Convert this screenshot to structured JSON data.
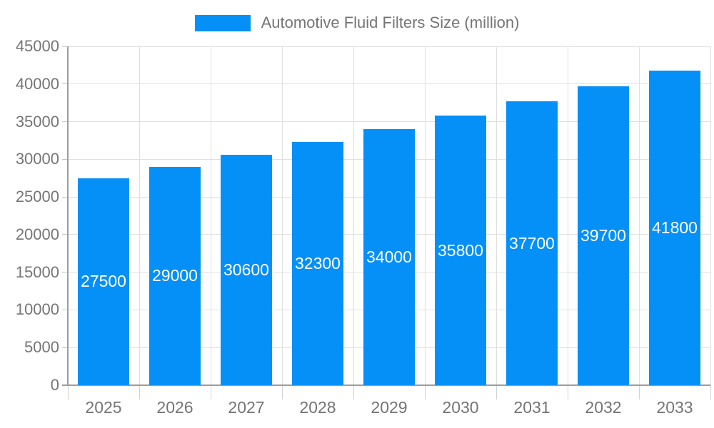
{
  "legend": {
    "label": "Automotive Fluid Filters Size (million)"
  },
  "chart_data": {
    "type": "bar",
    "title": "Automotive Fluid Filters Size (million)",
    "categories": [
      "2025",
      "2026",
      "2027",
      "2028",
      "2029",
      "2030",
      "2031",
      "2032",
      "2033"
    ],
    "values": [
      27500,
      29000,
      30600,
      32300,
      34000,
      35800,
      37700,
      39700,
      41800
    ],
    "series_name": "Automotive Fluid Filters Size (million)",
    "xlabel": "",
    "ylabel": "",
    "ylim": [
      0,
      45000
    ],
    "yticks": [
      0,
      5000,
      10000,
      15000,
      20000,
      25000,
      30000,
      35000,
      40000,
      45000
    ],
    "grid": true,
    "legend_position": "top",
    "value_labels": "inside-center-white",
    "colors": {
      "bar": "#0590f8",
      "value_label": "#ffffff",
      "axis_text": "#757575",
      "grid": "#e0e0e0",
      "axis_line": "#9e9e9e",
      "background": "#ffffff"
    }
  }
}
